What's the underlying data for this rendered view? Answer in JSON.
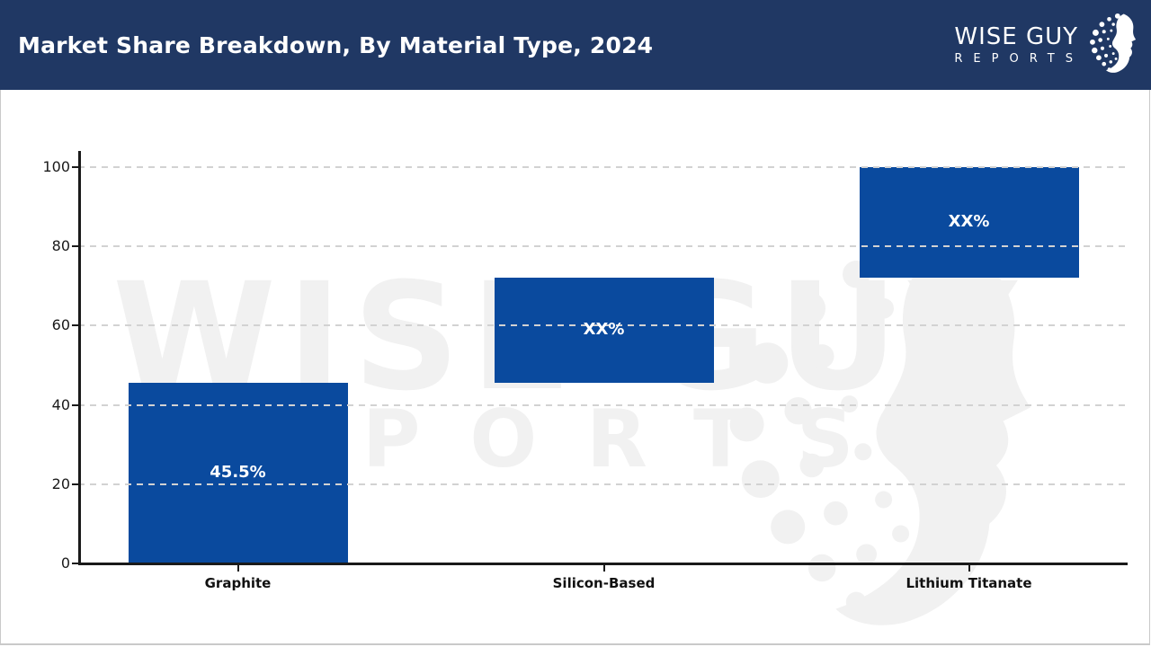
{
  "header": {
    "title": "Market Share Breakdown, By Material Type, 2024",
    "bg_color": "#203864",
    "logo": {
      "line1": "WISE GUY",
      "line2": "REPORTS"
    }
  },
  "watermark": {
    "line1": "WISE GUY",
    "line2": "REPORTS"
  },
  "chart_data": {
    "type": "bar",
    "subtype": "waterfall (stacked segment bars)",
    "title": "Market Share Breakdown, By Material Type, 2024",
    "unit": "%",
    "categories": [
      "Graphite",
      "Silicon-Based",
      "Lithium Titanate"
    ],
    "segments": [
      {
        "category": "Graphite",
        "start": 0,
        "end": 45.5,
        "label": "45.5%"
      },
      {
        "category": "Silicon-Based",
        "start": 45.5,
        "end": 72,
        "label": "XX%"
      },
      {
        "category": "Lithium Titanate",
        "start": 72,
        "end": 100,
        "label": "XX%"
      }
    ],
    "ylim": [
      0,
      100
    ],
    "yticks": [
      0,
      20,
      40,
      60,
      80,
      100
    ],
    "grid": "horizontal dashed lines, drawn above bars",
    "legend": "none",
    "bar_color": "#0A4A9E",
    "value_label_color": "#ffffff",
    "axis_color": "#1a1a1a",
    "gridline_color": "#d2d2d2"
  }
}
